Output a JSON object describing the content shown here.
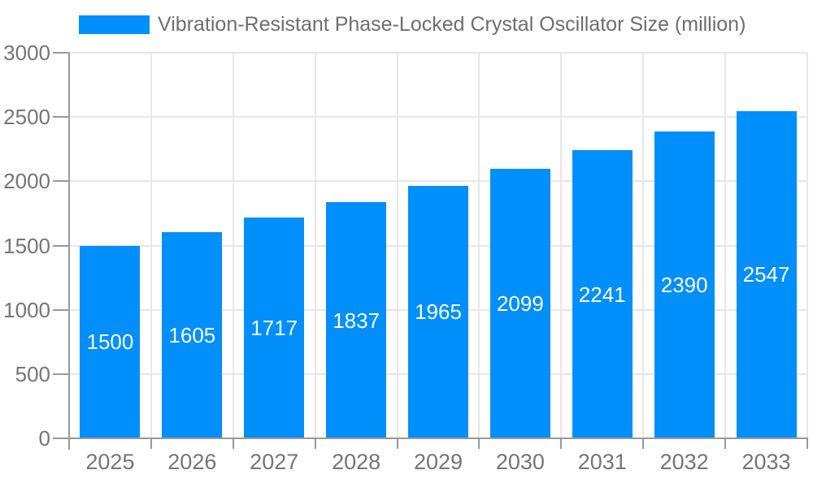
{
  "chart_data": {
    "type": "bar",
    "title": "Vibration-Resistant Phase-Locked Crystal Oscillator Size (million)",
    "categories": [
      "2025",
      "2026",
      "2027",
      "2028",
      "2029",
      "2030",
      "2031",
      "2032",
      "2033"
    ],
    "series": [
      {
        "name": "Vibration-Resistant Phase-Locked Crystal Oscillator Size (million)",
        "values": [
          1500,
          1605,
          1717,
          1837,
          1965,
          2099,
          2241,
          2390,
          2547
        ]
      }
    ],
    "xlabel": "",
    "ylabel": "",
    "ylim": [
      0,
      3000
    ],
    "yticks": [
      0,
      500,
      1000,
      1500,
      2000,
      2500,
      3000
    ],
    "grid": "horizontal and vertical gridlines on",
    "legend_position": "top",
    "value_labels": "centered inside bars",
    "colors": {
      "bar": "#008FFB",
      "axis": "#999999",
      "gridline": "#e7e7e7",
      "tick_label": "#757575",
      "title": "#6e6e6e",
      "value_label": "#ffffff",
      "background": "#ffffff"
    }
  }
}
